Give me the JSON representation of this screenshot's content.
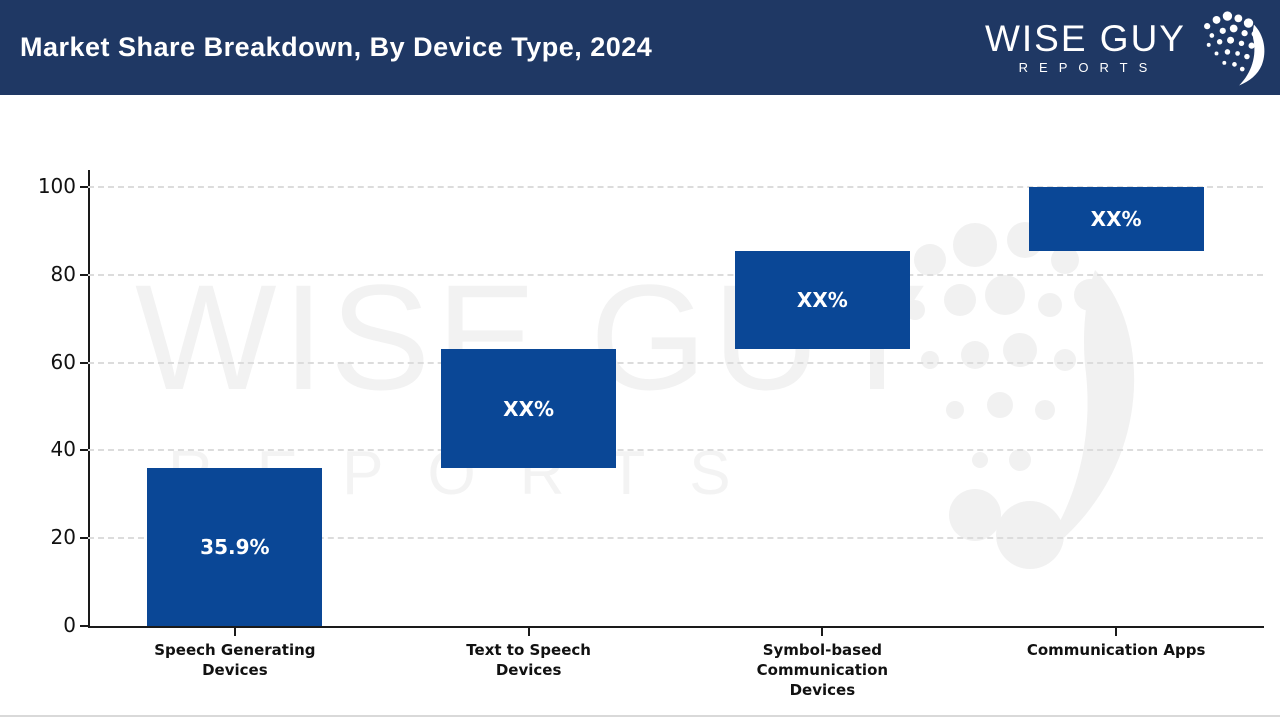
{
  "header": {
    "title": "Market Share Breakdown, By Device Type, 2024",
    "bg_color": "#1f3864",
    "logo": {
      "line1": "WISE GUY",
      "line2": "REPORTS"
    }
  },
  "watermark": {
    "line1": "WISE GUY",
    "line2": "REPORTS",
    "color": "#f2f2f2"
  },
  "chart_data": {
    "type": "bar",
    "subtype": "waterfall",
    "title": "Market Share Breakdown, By Device Type, 2024",
    "categories": [
      "Speech Generating\nDevices",
      "Text to Speech\nDevices",
      "Symbol-based\nCommunication\nDevices",
      "Communication Apps"
    ],
    "segments": [
      {
        "start": 0,
        "end": 35.9,
        "label": "35.9%"
      },
      {
        "start": 35.9,
        "end": 63,
        "label": "XX%"
      },
      {
        "start": 63,
        "end": 85.5,
        "label": "XX%"
      },
      {
        "start": 85.5,
        "end": 100,
        "label": "XX%"
      }
    ],
    "bar_color": "#0a4796",
    "bar_label_color": "#ffffff",
    "ylim": [
      0,
      100
    ],
    "yticks": [
      0,
      20,
      40,
      60,
      80,
      100
    ],
    "xlabel": "",
    "ylabel": "",
    "grid": "horizontal dashed",
    "legend": "none"
  }
}
